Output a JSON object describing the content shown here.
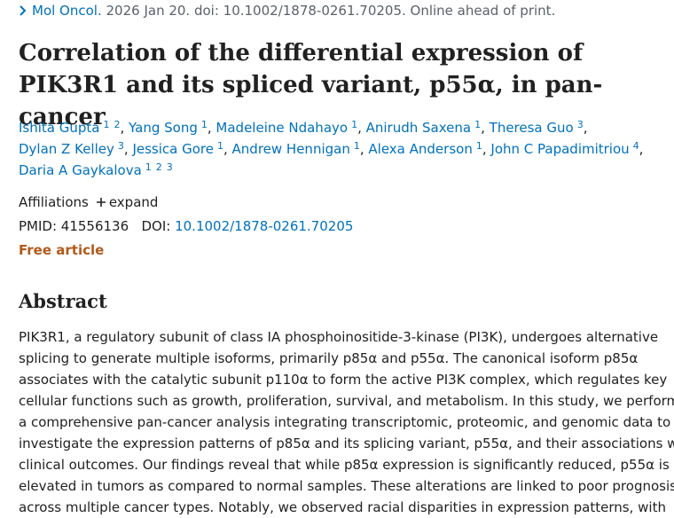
{
  "citation": {
    "journal": "Mol Oncol.",
    "details": "2026 Jan 20. doi: 10.1002/1878-0261.70205. Online ahead of print."
  },
  "title": "Correlation of the differential expression of PIK3R1 and its spliced variant, p55α, in pan-cancer",
  "authors_separator": ",",
  "authors": [
    {
      "name": "Ishita Gupta",
      "affiliations": [
        "1",
        "2"
      ]
    },
    {
      "name": "Yang Song",
      "affiliations": [
        "1"
      ]
    },
    {
      "name": "Madeleine Ndahayo",
      "affiliations": [
        "1"
      ]
    },
    {
      "name": "Anirudh Saxena",
      "affiliations": [
        "1"
      ]
    },
    {
      "name": "Theresa Guo",
      "affiliations": [
        "3"
      ]
    },
    {
      "name": "Dylan Z Kelley",
      "affiliations": [
        "3"
      ]
    },
    {
      "name": "Jessica Gore",
      "affiliations": [
        "1"
      ]
    },
    {
      "name": "Andrew Hennigan",
      "affiliations": [
        "1"
      ]
    },
    {
      "name": "Alexa Anderson",
      "affiliations": [
        "1"
      ]
    },
    {
      "name": "John C Papadimitriou",
      "affiliations": [
        "4"
      ]
    },
    {
      "name": "Daria A Gaykalova",
      "affiliations": [
        "1",
        "2",
        "3"
      ]
    }
  ],
  "affiliations_label": "Affiliations",
  "expand": "expand",
  "pmid_label": "PMID:",
  "pmid": "41556136",
  "doi_label": "DOI:",
  "doi": "10.1002/1878-0261.70205",
  "free_article": "Free article",
  "abstract": {
    "heading": "Abstract",
    "lines": [
      "PIK3R1, a regulatory subunit of class IA phosphoinositide-3-kinase (PI3K), undergoes alternative",
      "splicing to generate multiple isoforms, primarily p85α and p55α. The canonical isoform p85α",
      "associates with the catalytic subunit p110α to form the active PI3K complex, which regulates key",
      "cellular functions such as growth, proliferation, survival, and metabolism. In this study, we performed",
      "a comprehensive pan-cancer analysis integrating transcriptomic, proteomic, and genomic data to",
      "investigate the expression patterns of p85α and its splicing variant, p55α, and their associations with",
      "clinical outcomes. Our findings reveal that while p85α expression is significantly reduced, p55α is",
      "elevated in tumors as compared to normal samples. These alterations are linked to poor prognosis",
      "across multiple cancer types. Notably, we observed racial disparities in expression patterns, with"
    ]
  }
}
